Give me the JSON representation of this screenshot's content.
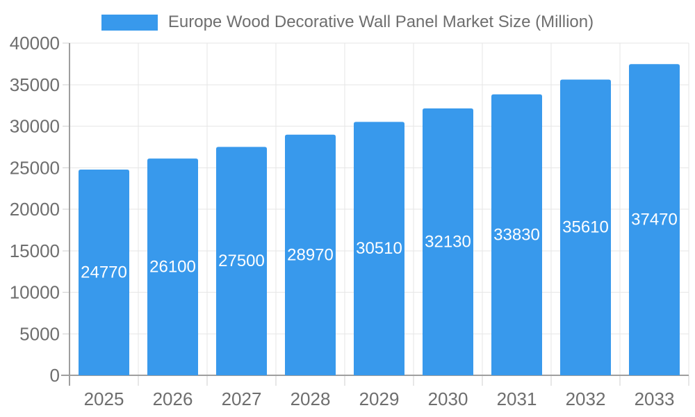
{
  "colors": {
    "bar": "#3899EC",
    "grid": "#E6E6E6",
    "axis": "#9E9E9E",
    "tick": "#CFCFCF",
    "tick_label": "#6E6E6E",
    "bar_label": "#FFFFFF",
    "background": "#FFFFFF"
  },
  "legend": {
    "label": "Europe Wood Decorative Wall Panel Market Size (Million)"
  },
  "chart_data": {
    "type": "bar",
    "title": "Europe Wood Decorative Wall Panel Market Size (Million)",
    "categories": [
      "2025",
      "2026",
      "2027",
      "2028",
      "2029",
      "2030",
      "2031",
      "2032",
      "2033"
    ],
    "values": [
      24770,
      26100,
      27500,
      28970,
      30510,
      32130,
      33830,
      35610,
      37470
    ],
    "value_labels": [
      "24770",
      "26100",
      "27500",
      "28970",
      "30510",
      "32130",
      "33830",
      "35610",
      "37470"
    ],
    "xlabel": "",
    "ylabel": "",
    "ylim": [
      0,
      40000
    ],
    "yticks": [
      0,
      5000,
      10000,
      15000,
      20000,
      25000,
      30000,
      35000,
      40000
    ],
    "ytick_labels": [
      "0",
      "5000",
      "10000",
      "15000",
      "20000",
      "25000",
      "30000",
      "35000",
      "40000"
    ],
    "grid": true,
    "legend_position": "top",
    "bar_color": "#3899EC"
  }
}
